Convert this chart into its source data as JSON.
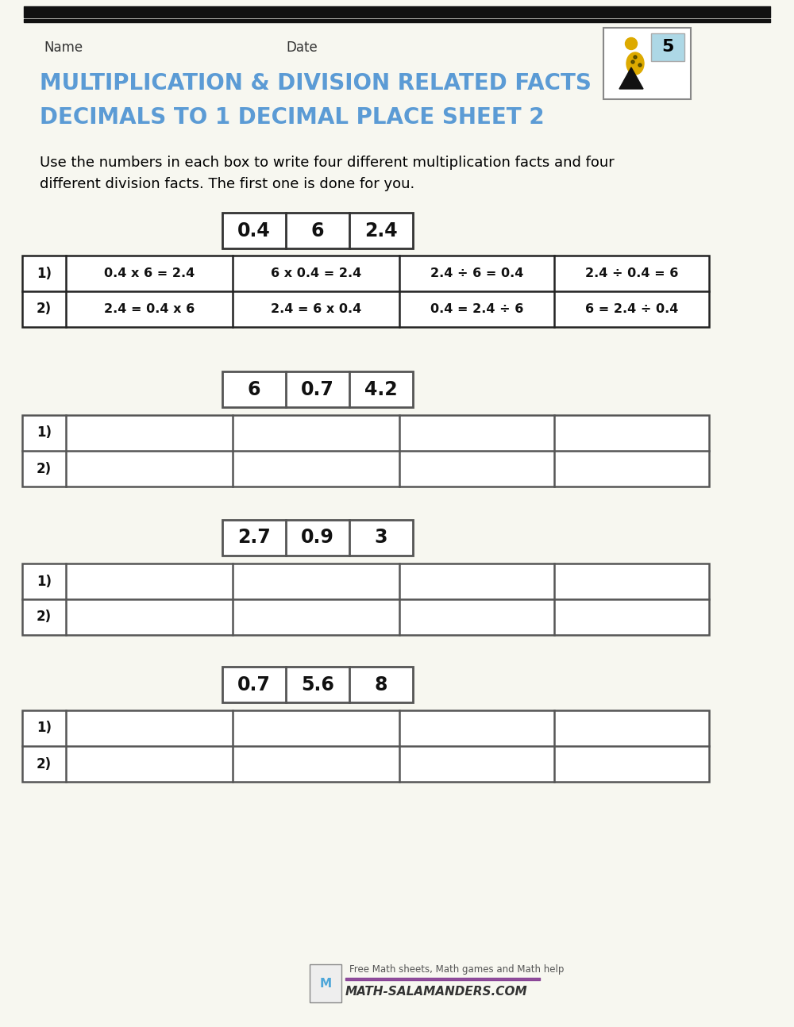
{
  "title_line1": "MULTIPLICATION & DIVISION RELATED FACTS",
  "title_line2": "DECIMALS TO 1 DECIMAL PLACE SHEET 2",
  "title_color": "#5b9bd5",
  "name_label": "Name",
  "date_label": "Date",
  "instructions_line1": "Use the numbers in each box to write four different multiplication facts and four",
  "instructions_line2": "different division facts. The first one is done for you.",
  "example_numbers": [
    "0.4",
    "6",
    "2.4"
  ],
  "example_row1": [
    "1)",
    "0.4 x 6 = 2.4",
    "6 x 0.4 = 2.4",
    "2.4 ÷ 6 = 0.4",
    "2.4 ÷ 0.4 = 6"
  ],
  "example_row2": [
    "2)",
    "2.4 = 0.4 x 6",
    "2.4 = 6 x 0.4",
    "0.4 = 2.4 ÷ 6",
    "6 = 2.4 ÷ 0.4"
  ],
  "sets": [
    {
      "numbers": [
        "6",
        "0.7",
        "4.2"
      ]
    },
    {
      "numbers": [
        "2.7",
        "0.9",
        "3"
      ]
    },
    {
      "numbers": [
        "0.7",
        "5.6",
        "8"
      ]
    }
  ],
  "bg_color": "#f7f7f0",
  "table_bg": "#ffffff",
  "border_color": "#222222",
  "text_color": "#000000",
  "footer_text1": "Free Math sheets, Math games and Math help",
  "footer_text2": "MATH-SALAMANDERS.COM",
  "footer_color": "#555555",
  "footer_url_color": "#333333"
}
